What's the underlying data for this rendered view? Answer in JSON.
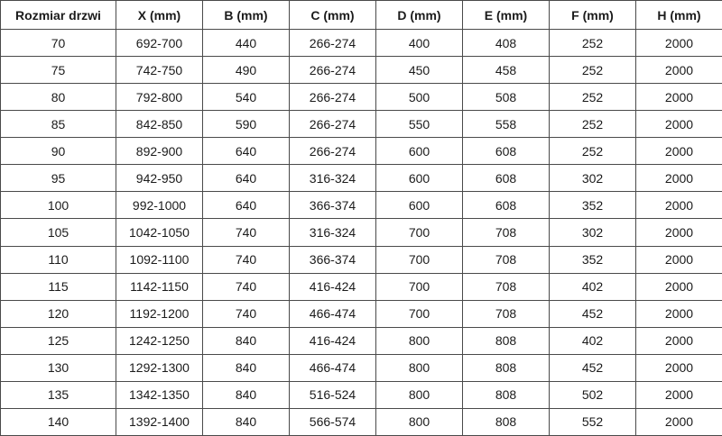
{
  "table": {
    "columns": [
      "Rozmiar drzwi",
      "X (mm)",
      "B (mm)",
      "C (mm)",
      "D (mm)",
      "E (mm)",
      "F (mm)",
      "H (mm)"
    ],
    "rows": [
      [
        "70",
        "692-700",
        "440",
        "266-274",
        "400",
        "408",
        "252",
        "2000"
      ],
      [
        "75",
        "742-750",
        "490",
        "266-274",
        "450",
        "458",
        "252",
        "2000"
      ],
      [
        "80",
        "792-800",
        "540",
        "266-274",
        "500",
        "508",
        "252",
        "2000"
      ],
      [
        "85",
        "842-850",
        "590",
        "266-274",
        "550",
        "558",
        "252",
        "2000"
      ],
      [
        "90",
        "892-900",
        "640",
        "266-274",
        "600",
        "608",
        "252",
        "2000"
      ],
      [
        "95",
        "942-950",
        "640",
        "316-324",
        "600",
        "608",
        "302",
        "2000"
      ],
      [
        "100",
        "992-1000",
        "640",
        "366-374",
        "600",
        "608",
        "352",
        "2000"
      ],
      [
        "105",
        "1042-1050",
        "740",
        "316-324",
        "700",
        "708",
        "302",
        "2000"
      ],
      [
        "110",
        "1092-1100",
        "740",
        "366-374",
        "700",
        "708",
        "352",
        "2000"
      ],
      [
        "115",
        "1142-1150",
        "740",
        "416-424",
        "700",
        "708",
        "402",
        "2000"
      ],
      [
        "120",
        "1192-1200",
        "740",
        "466-474",
        "700",
        "708",
        "452",
        "2000"
      ],
      [
        "125",
        "1242-1250",
        "840",
        "416-424",
        "800",
        "808",
        "402",
        "2000"
      ],
      [
        "130",
        "1292-1300",
        "840",
        "466-474",
        "800",
        "808",
        "452",
        "2000"
      ],
      [
        "135",
        "1342-1350",
        "840",
        "516-524",
        "800",
        "808",
        "502",
        "2000"
      ],
      [
        "140",
        "1392-1400",
        "840",
        "566-574",
        "800",
        "808",
        "552",
        "2000"
      ]
    ]
  },
  "colors": {
    "border": "#4a4a4a",
    "text": "#1b1b1b",
    "background": "#ffffff"
  }
}
